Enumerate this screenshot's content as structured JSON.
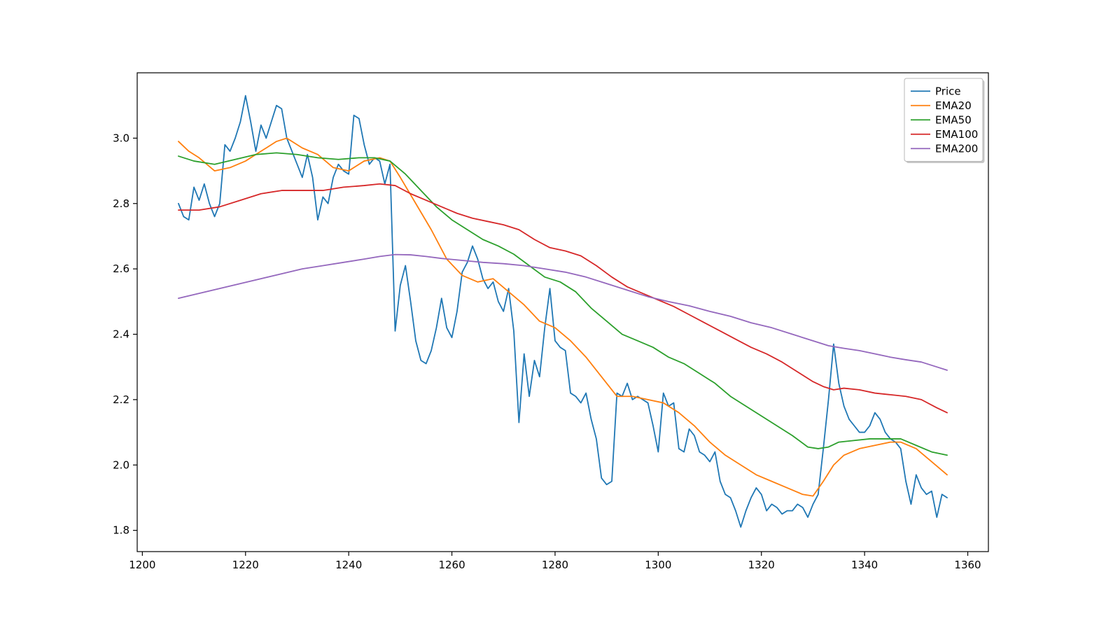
{
  "figure": {
    "background": "#ffffff"
  },
  "chart_data": {
    "type": "line",
    "title": "",
    "xlabel": "",
    "ylabel": "",
    "grid": false,
    "legend_position": "upper right",
    "xlim": [
      1199,
      1364
    ],
    "ylim": [
      1.735,
      3.2
    ],
    "xticks": [
      1200,
      1220,
      1240,
      1260,
      1280,
      1300,
      1320,
      1340,
      1360
    ],
    "xtick_labels": [
      "1200",
      "1220",
      "1240",
      "1260",
      "1280",
      "1300",
      "1320",
      "1340",
      "1360"
    ],
    "yticks": [
      1.8,
      2.0,
      2.2,
      2.4,
      2.6,
      2.8,
      3.0
    ],
    "ytick_labels": [
      "1.8",
      "2.0",
      "2.2",
      "2.4",
      "2.6",
      "2.8",
      "3.0"
    ],
    "series": [
      {
        "name": "Price",
        "color": "#1f77b4",
        "x_start": 1207,
        "x_step": 1,
        "y": [
          2.8,
          2.76,
          2.75,
          2.85,
          2.81,
          2.86,
          2.8,
          2.76,
          2.8,
          2.98,
          2.96,
          3.0,
          3.05,
          3.13,
          3.05,
          2.96,
          3.04,
          3.0,
          3.05,
          3.1,
          3.09,
          3.0,
          2.96,
          2.92,
          2.88,
          2.95,
          2.88,
          2.75,
          2.82,
          2.8,
          2.88,
          2.92,
          2.9,
          2.89,
          3.07,
          3.06,
          2.98,
          2.92,
          2.94,
          2.93,
          2.86,
          2.92,
          2.41,
          2.55,
          2.61,
          2.5,
          2.38,
          2.32,
          2.31,
          2.35,
          2.42,
          2.51,
          2.42,
          2.39,
          2.47,
          2.59,
          2.62,
          2.67,
          2.63,
          2.57,
          2.54,
          2.56,
          2.5,
          2.47,
          2.54,
          2.41,
          2.13,
          2.34,
          2.21,
          2.32,
          2.27,
          2.42,
          2.54,
          2.38,
          2.36,
          2.35,
          2.22,
          2.21,
          2.19,
          2.22,
          2.14,
          2.08,
          1.96,
          1.94,
          1.95,
          2.22,
          2.21,
          2.25,
          2.2,
          2.21,
          2.2,
          2.19,
          2.12,
          2.04,
          2.22,
          2.18,
          2.19,
          2.05,
          2.04,
          2.11,
          2.09,
          2.04,
          2.03,
          2.01,
          2.04,
          1.95,
          1.91,
          1.9,
          1.86,
          1.81,
          1.86,
          1.9,
          1.93,
          1.91,
          1.86,
          1.88,
          1.87,
          1.85,
          1.86,
          1.86,
          1.88,
          1.87,
          1.84,
          1.88,
          1.91,
          2.05,
          2.2,
          2.37,
          2.25,
          2.18,
          2.14,
          2.12,
          2.1,
          2.1,
          2.12,
          2.16,
          2.14,
          2.1,
          2.08,
          2.07,
          2.05,
          1.95,
          1.88,
          1.97,
          1.93,
          1.91,
          1.92,
          1.84,
          1.91,
          1.9
        ]
      },
      {
        "name": "EMA20",
        "color": "#ff7f0e",
        "x": [
          1207,
          1209,
          1211,
          1214,
          1217,
          1220,
          1223,
          1226,
          1228,
          1231,
          1234,
          1237,
          1240,
          1243,
          1246,
          1248,
          1250,
          1253,
          1256,
          1259,
          1262,
          1265,
          1268,
          1271,
          1274,
          1277,
          1280,
          1283,
          1286,
          1289,
          1292,
          1295,
          1298,
          1301,
          1304,
          1307,
          1310,
          1313,
          1316,
          1319,
          1322,
          1325,
          1328,
          1330,
          1332,
          1334,
          1336,
          1339,
          1342,
          1345,
          1347,
          1350,
          1353,
          1356
        ],
        "y": [
          2.99,
          2.96,
          2.94,
          2.9,
          2.91,
          2.93,
          2.96,
          2.99,
          3.0,
          2.97,
          2.95,
          2.91,
          2.9,
          2.93,
          2.94,
          2.93,
          2.88,
          2.8,
          2.72,
          2.63,
          2.58,
          2.56,
          2.57,
          2.53,
          2.49,
          2.44,
          2.42,
          2.38,
          2.33,
          2.27,
          2.21,
          2.21,
          2.2,
          2.19,
          2.16,
          2.12,
          2.07,
          2.03,
          2.0,
          1.97,
          1.95,
          1.93,
          1.91,
          1.905,
          1.95,
          2.0,
          2.03,
          2.05,
          2.06,
          2.07,
          2.07,
          2.05,
          2.01,
          1.97
        ]
      },
      {
        "name": "EMA50",
        "color": "#2ca02c",
        "x": [
          1207,
          1210,
          1214,
          1218,
          1222,
          1226,
          1230,
          1234,
          1238,
          1242,
          1245,
          1248,
          1251,
          1254,
          1257,
          1260,
          1263,
          1266,
          1269,
          1272,
          1275,
          1278,
          1281,
          1284,
          1287,
          1290,
          1293,
          1296,
          1299,
          1302,
          1305,
          1308,
          1311,
          1314,
          1317,
          1320,
          1323,
          1326,
          1329,
          1331,
          1333,
          1335,
          1338,
          1341,
          1344,
          1347,
          1350,
          1353,
          1356
        ],
        "y": [
          2.945,
          2.93,
          2.92,
          2.935,
          2.95,
          2.955,
          2.95,
          2.94,
          2.935,
          2.94,
          2.94,
          2.93,
          2.89,
          2.84,
          2.79,
          2.75,
          2.72,
          2.69,
          2.67,
          2.645,
          2.61,
          2.575,
          2.56,
          2.53,
          2.48,
          2.44,
          2.4,
          2.38,
          2.36,
          2.33,
          2.31,
          2.28,
          2.25,
          2.21,
          2.18,
          2.15,
          2.12,
          2.09,
          2.055,
          2.05,
          2.055,
          2.07,
          2.075,
          2.08,
          2.08,
          2.08,
          2.06,
          2.04,
          2.03
        ]
      },
      {
        "name": "EMA100",
        "color": "#d62728",
        "x": [
          1207,
          1211,
          1215,
          1219,
          1223,
          1227,
          1231,
          1235,
          1239,
          1243,
          1246,
          1249,
          1252,
          1255,
          1258,
          1261,
          1264,
          1267,
          1270,
          1273,
          1276,
          1279,
          1282,
          1285,
          1288,
          1291,
          1294,
          1297,
          1300,
          1303,
          1306,
          1309,
          1312,
          1315,
          1318,
          1321,
          1324,
          1327,
          1330,
          1332,
          1334,
          1336,
          1339,
          1342,
          1345,
          1348,
          1351,
          1354,
          1356
        ],
        "y": [
          2.78,
          2.78,
          2.79,
          2.81,
          2.83,
          2.84,
          2.84,
          2.84,
          2.85,
          2.855,
          2.86,
          2.855,
          2.83,
          2.81,
          2.79,
          2.77,
          2.755,
          2.745,
          2.735,
          2.72,
          2.69,
          2.665,
          2.655,
          2.64,
          2.61,
          2.575,
          2.545,
          2.525,
          2.505,
          2.485,
          2.46,
          2.435,
          2.41,
          2.385,
          2.36,
          2.34,
          2.315,
          2.285,
          2.255,
          2.24,
          2.23,
          2.235,
          2.23,
          2.22,
          2.215,
          2.21,
          2.2,
          2.175,
          2.16
        ]
      },
      {
        "name": "EMA200",
        "color": "#9467bd",
        "x": [
          1207,
          1211,
          1215,
          1219,
          1223,
          1227,
          1231,
          1235,
          1239,
          1243,
          1246,
          1249,
          1252,
          1255,
          1258,
          1262,
          1266,
          1270,
          1274,
          1278,
          1282,
          1286,
          1290,
          1294,
          1298,
          1302,
          1306,
          1310,
          1314,
          1318,
          1322,
          1326,
          1330,
          1333,
          1336,
          1339,
          1342,
          1345,
          1348,
          1351,
          1354,
          1356
        ],
        "y": [
          2.51,
          2.525,
          2.54,
          2.555,
          2.57,
          2.585,
          2.6,
          2.61,
          2.62,
          2.63,
          2.638,
          2.644,
          2.643,
          2.638,
          2.632,
          2.626,
          2.62,
          2.616,
          2.61,
          2.6,
          2.59,
          2.575,
          2.555,
          2.535,
          2.515,
          2.5,
          2.487,
          2.47,
          2.455,
          2.435,
          2.42,
          2.4,
          2.38,
          2.365,
          2.357,
          2.35,
          2.34,
          2.33,
          2.322,
          2.315,
          2.3,
          2.29
        ]
      }
    ]
  },
  "legend": {
    "entries": [
      "Price",
      "EMA20",
      "EMA50",
      "EMA100",
      "EMA200"
    ],
    "border_color": "#b7b7b7",
    "background": "#ffffff"
  },
  "style": {
    "axes_color": "#000000",
    "tick_label_color": "#000000"
  }
}
